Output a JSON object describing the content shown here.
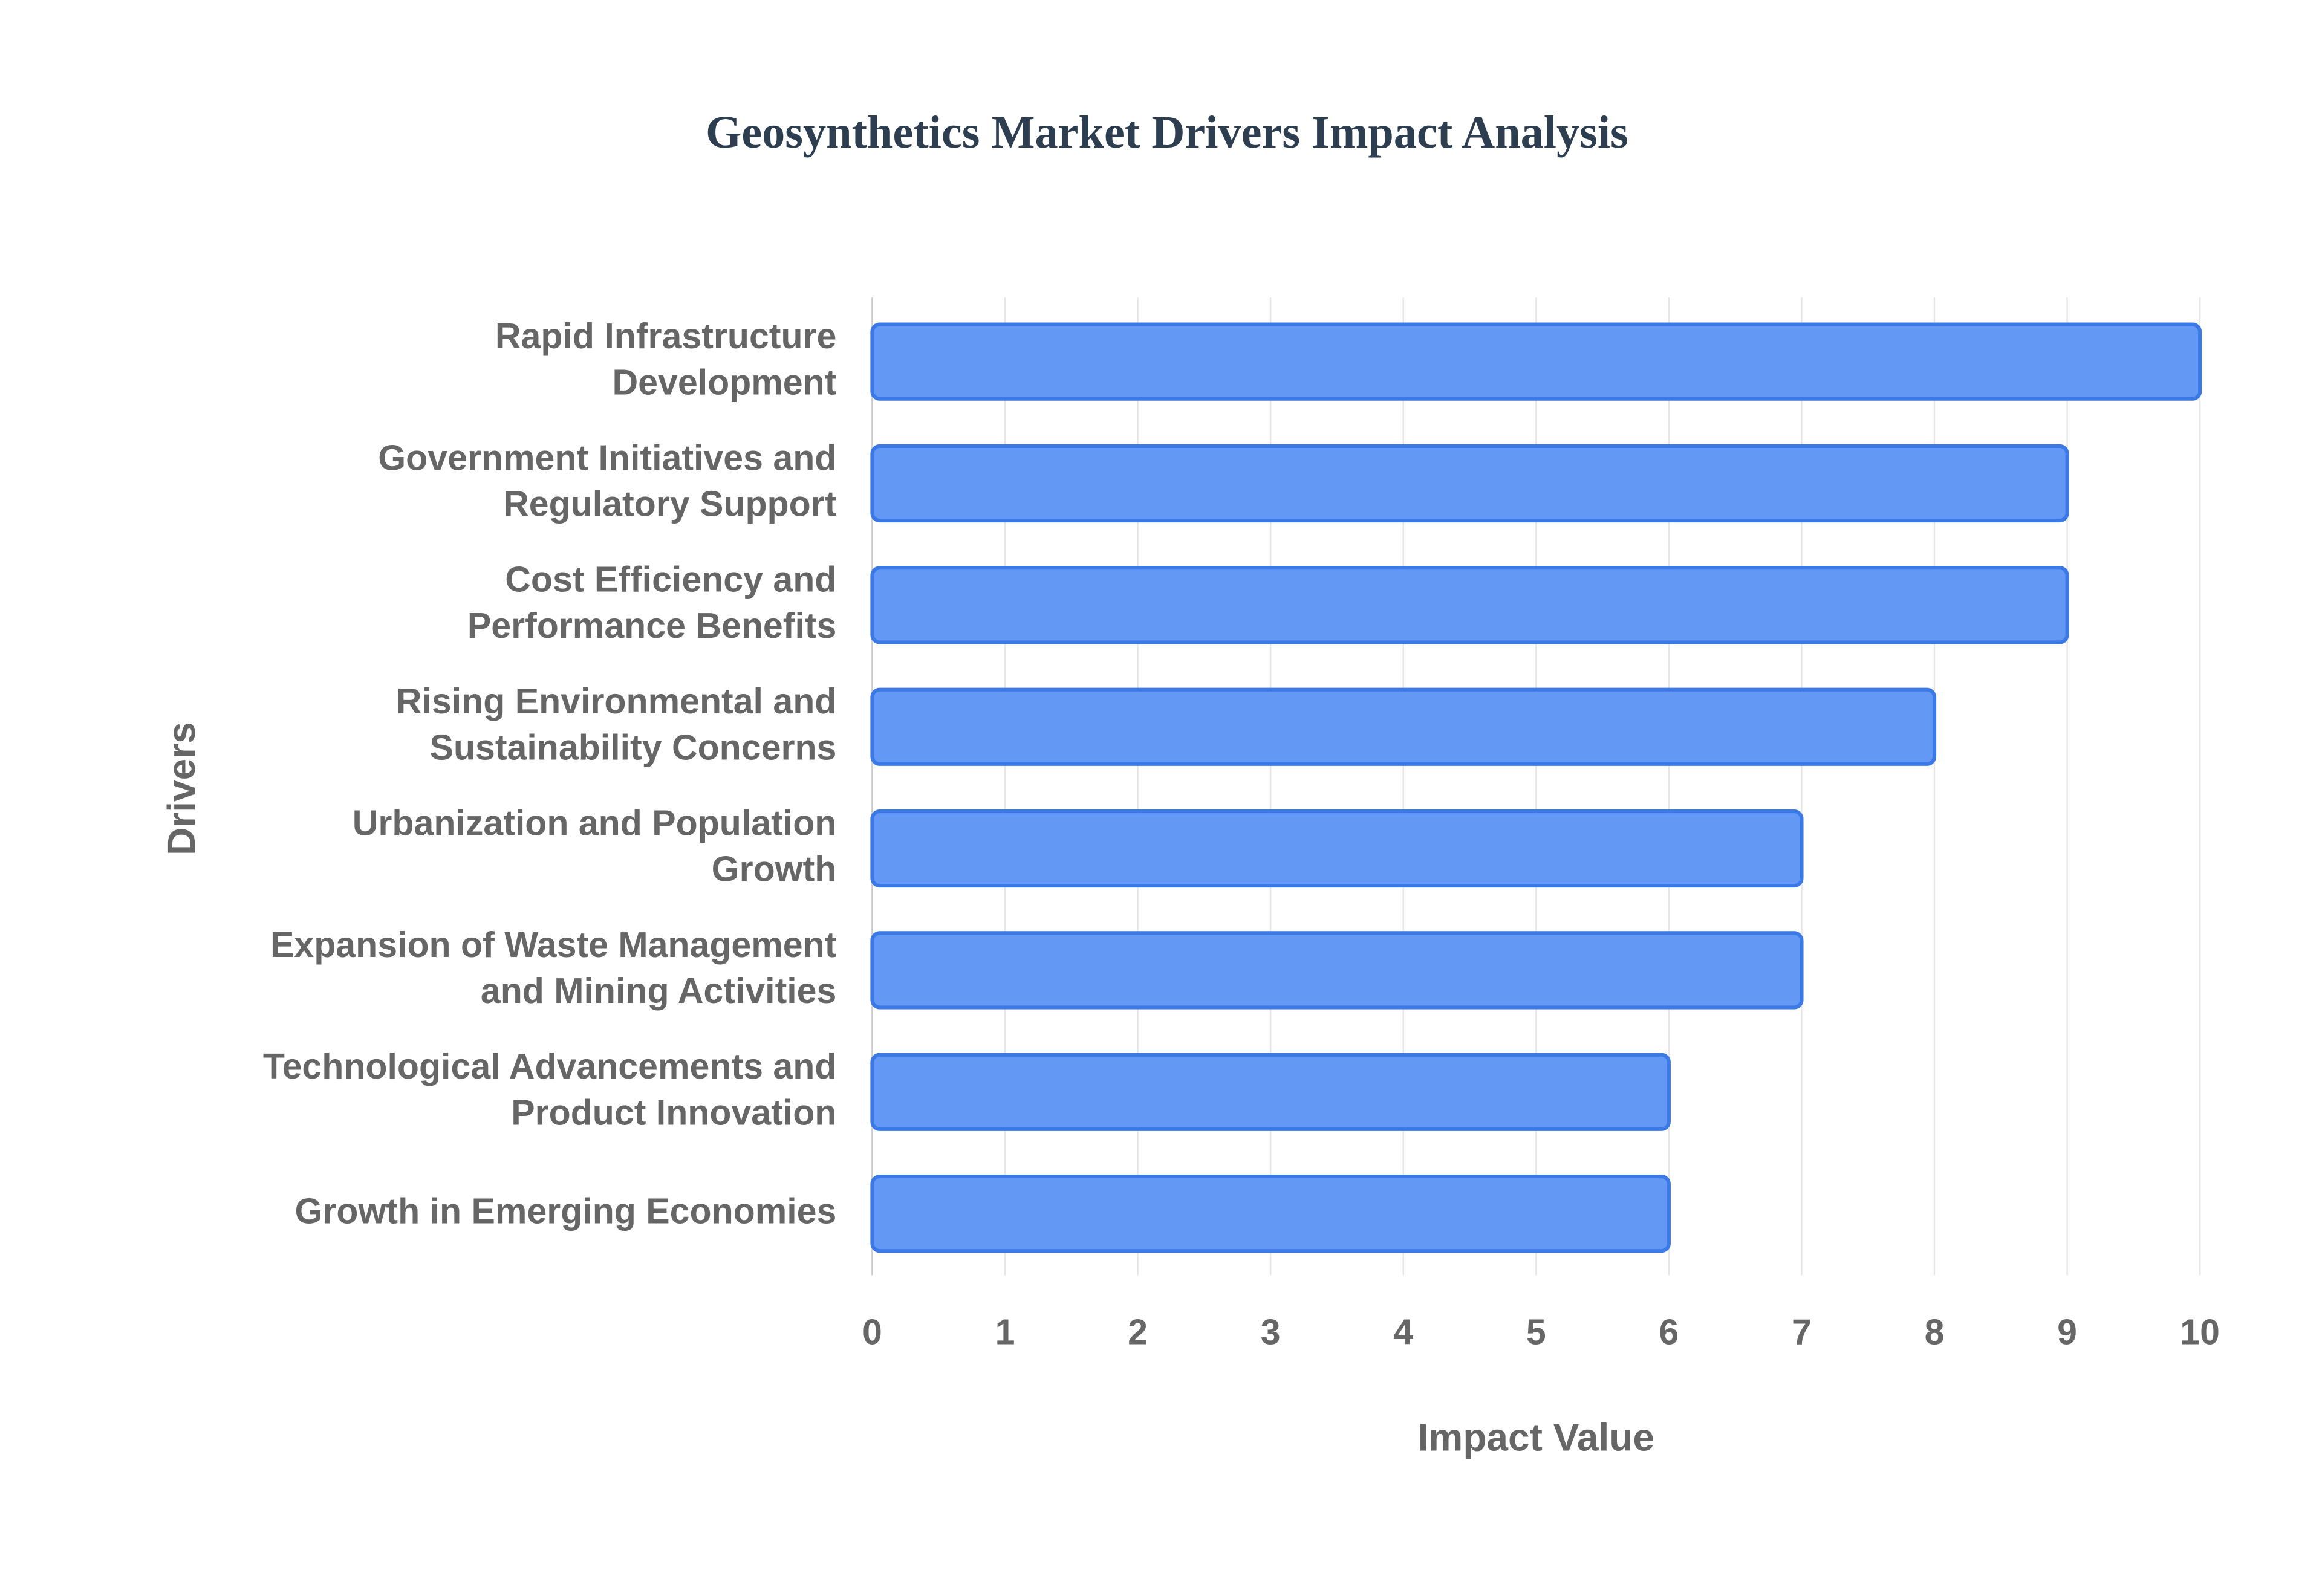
{
  "chart_data": {
    "type": "bar",
    "orientation": "horizontal",
    "title": "Geosynthetics Market Drivers Impact Analysis",
    "x_label": "Impact Value",
    "y_label": "Drivers",
    "categories": [
      "Rapid Infrastructure Development",
      "Government Initiatives and Regulatory Support",
      "Cost Efficiency and Performance Benefits",
      "Rising Environmental and Sustainability Concerns",
      "Urbanization and Population Growth",
      "Expansion of Waste Management and Mining Activities",
      "Technological Advancements and Product Innovation",
      "Growth in Emerging Economies"
    ],
    "values": [
      10,
      9,
      9,
      8,
      7,
      7,
      6,
      6
    ],
    "color": "#6399f5",
    "edge_color": "#3b7ae6",
    "xlim": [
      0,
      10
    ],
    "xticks": [
      0,
      1,
      2,
      3,
      4,
      5,
      6,
      7,
      8,
      9,
      10
    ],
    "grid": true
  }
}
